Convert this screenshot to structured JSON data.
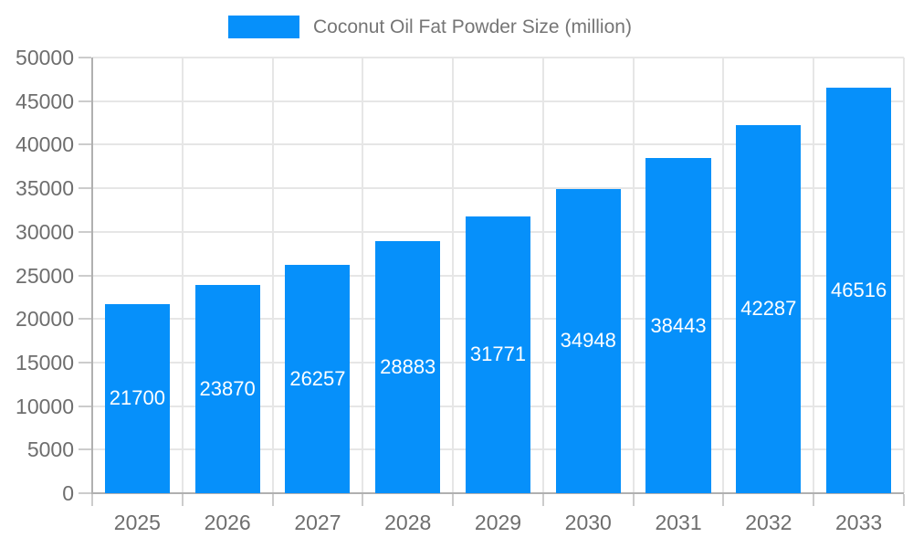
{
  "legend": {
    "label": "Coconut Oil Fat Powder Size (million)"
  },
  "chart_data": {
    "type": "bar",
    "title": "Coconut Oil Fat Powder Size (million)",
    "categories": [
      "2025",
      "2026",
      "2027",
      "2028",
      "2029",
      "2030",
      "2031",
      "2032",
      "2033"
    ],
    "values": [
      21700,
      23870,
      26257,
      28883,
      31771,
      34948,
      38443,
      42287,
      46516
    ],
    "series": [
      {
        "name": "Coconut Oil Fat Powder Size (million)",
        "values": [
          21700,
          23870,
          26257,
          28883,
          31771,
          34948,
          38443,
          42287,
          46516
        ]
      }
    ],
    "xlabel": "",
    "ylabel": "",
    "ylim": [
      0,
      50000
    ],
    "ytick_step": 5000,
    "grid": true,
    "legend_position": "top-center",
    "bar_value_labels": "inside-center",
    "colors": {
      "bar": "#0690fa",
      "bar_label_text": "#ffffff",
      "axis_text": "#6e6e6e",
      "title_text": "#757575",
      "gridline": "#e6e6e6",
      "axis_line": "#b0b0b0",
      "tick": "#cccccc",
      "background": "#ffffff"
    }
  }
}
